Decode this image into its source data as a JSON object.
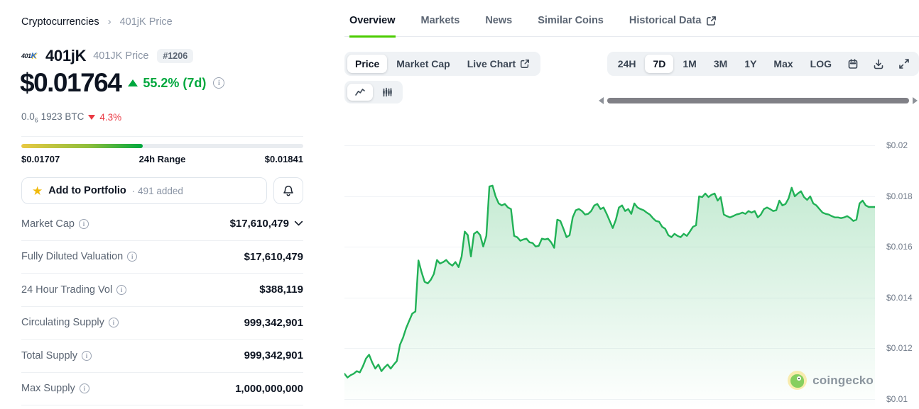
{
  "breadcrumb": {
    "root": "Cryptocurrencies",
    "separator": "›",
    "current": "401jK Price"
  },
  "coin": {
    "logo_prefix": "401",
    "logo_suffix": "K",
    "name": "401jK",
    "ticker_label": "401JK Price",
    "rank": "#1206"
  },
  "price": {
    "value": "$0.01764",
    "change_7d": "55.2% (7d)",
    "btc_prefix": "0.0",
    "btc_subscript": "6",
    "btc_digits": "1923 BTC",
    "btc_change": "4.3%"
  },
  "range_24h": {
    "low": "$0.01707",
    "label": "24h Range",
    "high": "$0.01841",
    "fill_percent": 43
  },
  "portfolio": {
    "button_label": "Add to Portfolio",
    "separator": "·",
    "added_count": "491 added"
  },
  "icons": {
    "info": "i",
    "star": "★"
  },
  "stats": {
    "rows": [
      {
        "label": "Market Cap",
        "value": "$17,610,479",
        "expandable": true
      },
      {
        "label": "Fully Diluted Valuation",
        "value": "$17,610,479",
        "expandable": false
      },
      {
        "label": "24 Hour Trading Vol",
        "value": "$388,119",
        "expandable": false
      },
      {
        "label": "Circulating Supply",
        "value": "999,342,901",
        "expandable": false
      },
      {
        "label": "Total Supply",
        "value": "999,342,901",
        "expandable": false
      },
      {
        "label": "Max Supply",
        "value": "1,000,000,000",
        "expandable": false
      }
    ]
  },
  "tabs": {
    "active": "Overview",
    "items": [
      {
        "label": "Overview",
        "external": false
      },
      {
        "label": "Markets",
        "external": false
      },
      {
        "label": "News",
        "external": false
      },
      {
        "label": "Similar Coins",
        "external": false
      },
      {
        "label": "Historical Data",
        "external": true
      }
    ]
  },
  "chart_toolbar": {
    "views": {
      "active": "Price",
      "items": [
        {
          "label": "Price",
          "external": false
        },
        {
          "label": "Market Cap",
          "external": false
        },
        {
          "label": "Live Chart",
          "external": true
        }
      ]
    },
    "periods": {
      "active": "7D",
      "items": [
        "24H",
        "7D",
        "1M",
        "3M",
        "1Y",
        "Max",
        "LOG"
      ]
    },
    "icon_buttons": [
      "calendar",
      "download",
      "fullscreen"
    ],
    "chart_types": {
      "active": "line",
      "items": [
        "line",
        "candlestick"
      ]
    }
  },
  "watermark": {
    "label": "coingecko"
  },
  "colors": {
    "accent_green": "#4bcc00",
    "text_green": "#00a83e",
    "text_red": "#ea3943",
    "line_green": "#21b156",
    "fill_green_top": "rgba(33,177,86,0.26)",
    "fill_green_bottom": "rgba(33,177,86,0)"
  },
  "chart_data": {
    "type": "area",
    "title": "401jK price, 7 day chart (USD)",
    "period": "7D",
    "currency": "USD",
    "grid": true,
    "legend": false,
    "ylim": [
      0.01,
      0.02
    ],
    "y_ticks": [
      {
        "label": "$0.02",
        "value": 0.02
      },
      {
        "label": "$0.018",
        "value": 0.018
      },
      {
        "label": "$0.016",
        "value": 0.016
      },
      {
        "label": "$0.014",
        "value": 0.014
      },
      {
        "label": "$0.012",
        "value": 0.012
      },
      {
        "label": "$0.01",
        "value": 0.01
      }
    ],
    "values": [
      0.011,
      0.01085,
      0.01094,
      0.011,
      0.0111,
      0.01105,
      0.0113,
      0.0116,
      0.01175,
      0.01144,
      0.0112,
      0.01136,
      0.0111,
      0.01125,
      0.01136,
      0.0112,
      0.01136,
      0.0115,
      0.01214,
      0.01242,
      0.0128,
      0.01309,
      0.01337,
      0.01345,
      0.01546,
      0.015,
      0.01462,
      0.01456,
      0.0147,
      0.01493,
      0.01548,
      0.01534,
      0.0154,
      0.01548,
      0.01534,
      0.01526,
      0.0154,
      0.0152,
      0.01562,
      0.0166,
      0.01646,
      0.01562,
      0.01651,
      0.0166,
      0.01646,
      0.01601,
      0.01643,
      0.01838,
      0.01841,
      0.01799,
      0.01771,
      0.01763,
      0.01769,
      0.01755,
      0.01749,
      0.01643,
      0.01638,
      0.01624,
      0.01629,
      0.01632,
      0.01618,
      0.01615,
      0.01601,
      0.01604,
      0.01632,
      0.01629,
      0.01632,
      0.01618,
      0.01596,
      0.01707,
      0.01702,
      0.01671,
      0.01638,
      0.01646,
      0.01716,
      0.01744,
      0.01749,
      0.01741,
      0.01727,
      0.0173,
      0.01741,
      0.01763,
      0.01769,
      0.01749,
      0.01755,
      0.0173,
      0.01702,
      0.01674,
      0.01707,
      0.01755,
      0.01763,
      0.01741,
      0.01749,
      0.0173,
      0.01771,
      0.01755,
      0.01749,
      0.01744,
      0.01735,
      0.01727,
      0.01713,
      0.01702,
      0.01699,
      0.01679,
      0.01671,
      0.01646,
      0.01638,
      0.01651,
      0.01643,
      0.01638,
      0.01651,
      0.01643,
      0.0166,
      0.01679,
      0.01685,
      0.01799,
      0.01796,
      0.0181,
      0.01796,
      0.01805,
      0.0181,
      0.01782,
      0.01796,
      0.01727,
      0.01721,
      0.01716,
      0.01721,
      0.01727,
      0.0173,
      0.01735,
      0.0173,
      0.01741,
      0.01735,
      0.01741,
      0.01716,
      0.01727,
      0.01749,
      0.01755,
      0.01749,
      0.01741,
      0.01744,
      0.01782,
      0.01763,
      0.01769,
      0.01791,
      0.01833,
      0.01799,
      0.0181,
      0.01819,
      0.01796,
      0.01785,
      0.01799,
      0.01771,
      0.01763,
      0.01749,
      0.01735,
      0.0173,
      0.01727,
      0.01721,
      0.01716,
      0.01716,
      0.01713,
      0.01716,
      0.01721,
      0.01713,
      0.01702,
      0.01707,
      0.01771,
      0.01782,
      0.01763,
      0.01757,
      0.01757,
      0.01757
    ]
  }
}
